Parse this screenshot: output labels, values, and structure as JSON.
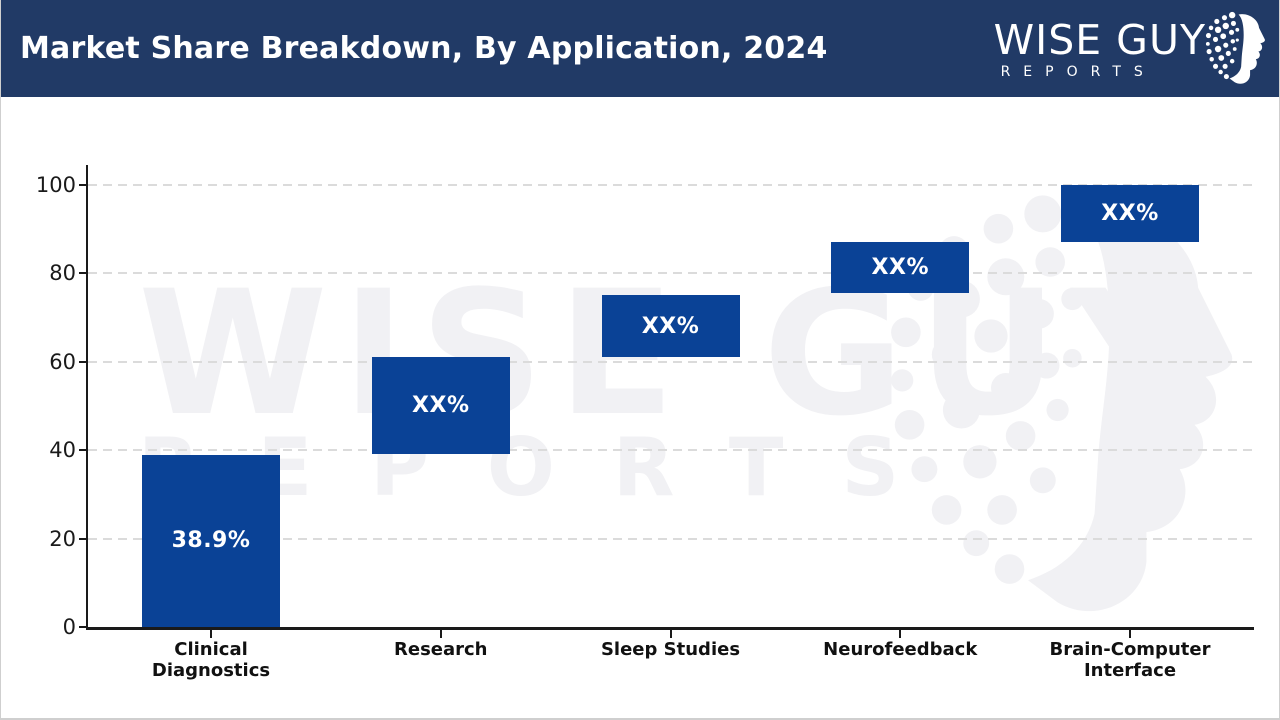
{
  "header": {
    "title": "Market Share Breakdown, By Application, 2024",
    "bg_color": "#213A66",
    "logo": {
      "brand_top": "WISE GUY",
      "brand_bottom": "REPORTS"
    }
  },
  "watermark": {
    "brand_top": "WISE GUY",
    "brand_bottom": "REPORTS"
  },
  "chart_data": {
    "type": "bar",
    "subtype": "floating-waterfall",
    "title": "Market Share Breakdown, By Application, 2024",
    "categories": [
      "Clinical\nDiagnostics",
      "Research",
      "Sleep Studies",
      "Neurofeedback",
      "Brain-Computer\nInterface"
    ],
    "segments": [
      {
        "category": "Clinical Diagnostics",
        "start": 0,
        "end": 38.9,
        "label": "38.9%"
      },
      {
        "category": "Research",
        "start": 39,
        "end": 61,
        "label": "XX%"
      },
      {
        "category": "Sleep Studies",
        "start": 61,
        "end": 75,
        "label": "XX%"
      },
      {
        "category": "Neurofeedback",
        "start": 75.5,
        "end": 87,
        "label": "XX%"
      },
      {
        "category": "Brain-Computer Interface",
        "start": 87,
        "end": 100,
        "label": "XX%"
      }
    ],
    "y_ticks": [
      0,
      20,
      40,
      60,
      80,
      100
    ],
    "ylim": [
      0,
      104.4
    ],
    "xlabel": "",
    "ylabel": "",
    "bar_color": "#0A4296",
    "grid": {
      "axis": "y",
      "style": "dashed",
      "color": "#DBDBDB"
    },
    "legend": "none"
  }
}
